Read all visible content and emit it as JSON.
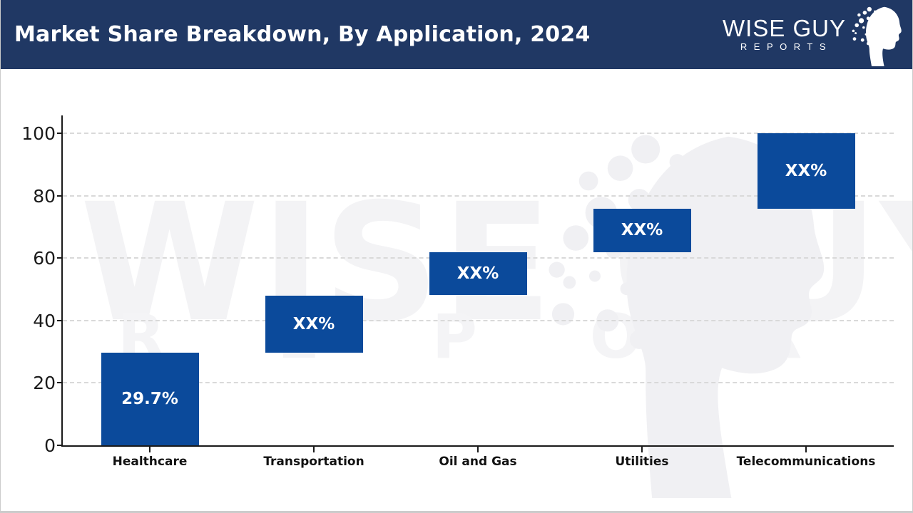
{
  "header": {
    "title": "Market Share Breakdown, By Application, 2024",
    "logo": {
      "line1": "WISE GUY",
      "line2": "REPORTS"
    }
  },
  "watermark": {
    "line1": "WISE GUY",
    "line2": "R E P O R T S"
  },
  "colors": {
    "header_bg": "#203864",
    "bar": "#0b4a9b",
    "bar_label": "#ffffff",
    "axis": "#1a1a1a",
    "gridline": "#d9d9d9",
    "watermark_text": "#f3f3f5",
    "watermark_face": "#f0f0f3",
    "title_text": "#ffffff"
  },
  "chart_data": {
    "type": "bar",
    "subtype": "waterfall",
    "title": "Market Share Breakdown, By Application, 2024",
    "categories": [
      "Healthcare",
      "Transportation",
      "Oil and Gas",
      "Utilities",
      "Telecommunications"
    ],
    "segments": [
      {
        "category": "Healthcare",
        "start": 0,
        "end": 29.7,
        "label": "29.7%"
      },
      {
        "category": "Transportation",
        "start": 29.7,
        "end": 48.0,
        "label": "XX%"
      },
      {
        "category": "Oil and Gas",
        "start": 48.2,
        "end": 61.8,
        "label": "XX%"
      },
      {
        "category": "Utilities",
        "start": 61.9,
        "end": 75.8,
        "label": "XX%"
      },
      {
        "category": "Telecommunications",
        "start": 75.8,
        "end": 100,
        "label": "XX%"
      }
    ],
    "yticks": [
      0,
      20,
      40,
      60,
      80,
      100
    ],
    "ylim": [
      0,
      105
    ],
    "xlabel": "",
    "ylabel": "",
    "grid": "horizontal-dashed",
    "legend": "none"
  }
}
